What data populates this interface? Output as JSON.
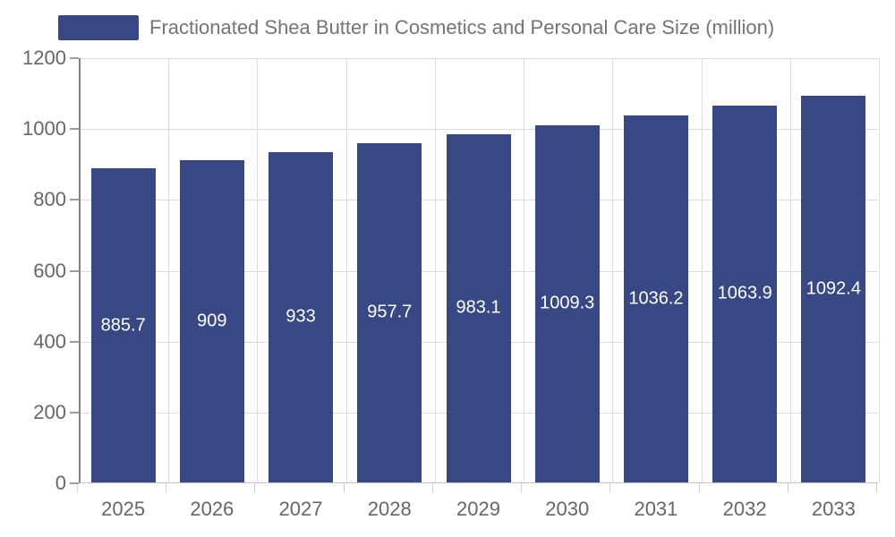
{
  "legend": {
    "label": "Fractionated Shea Butter in Cosmetics and Personal Care Size (million)"
  },
  "chart_data": {
    "type": "bar",
    "title": "Fractionated Shea Butter in Cosmetics and Personal Care Size (million)",
    "categories": [
      "2025",
      "2026",
      "2027",
      "2028",
      "2029",
      "2030",
      "2031",
      "2032",
      "2033"
    ],
    "values": [
      885.7,
      909,
      933,
      957.7,
      983.1,
      1009.3,
      1036.2,
      1063.9,
      1092.4
    ],
    "value_labels": [
      "885.7",
      "909",
      "933",
      "957.7",
      "983.1",
      "1009.3",
      "1036.2",
      "1063.9",
      "1092.4"
    ],
    "xlabel": "",
    "ylabel": "",
    "ylim": [
      0,
      1200
    ],
    "yticks": [
      0,
      200,
      400,
      600,
      800,
      1000,
      1200
    ],
    "grid": true,
    "legend_position": "top-left",
    "colors": {
      "bar": "#374885",
      "grid": "#dcdcdc",
      "axis": "#848484",
      "tick_text": "#666666",
      "legend_text": "#747474",
      "value_text": "#ffffff"
    }
  }
}
